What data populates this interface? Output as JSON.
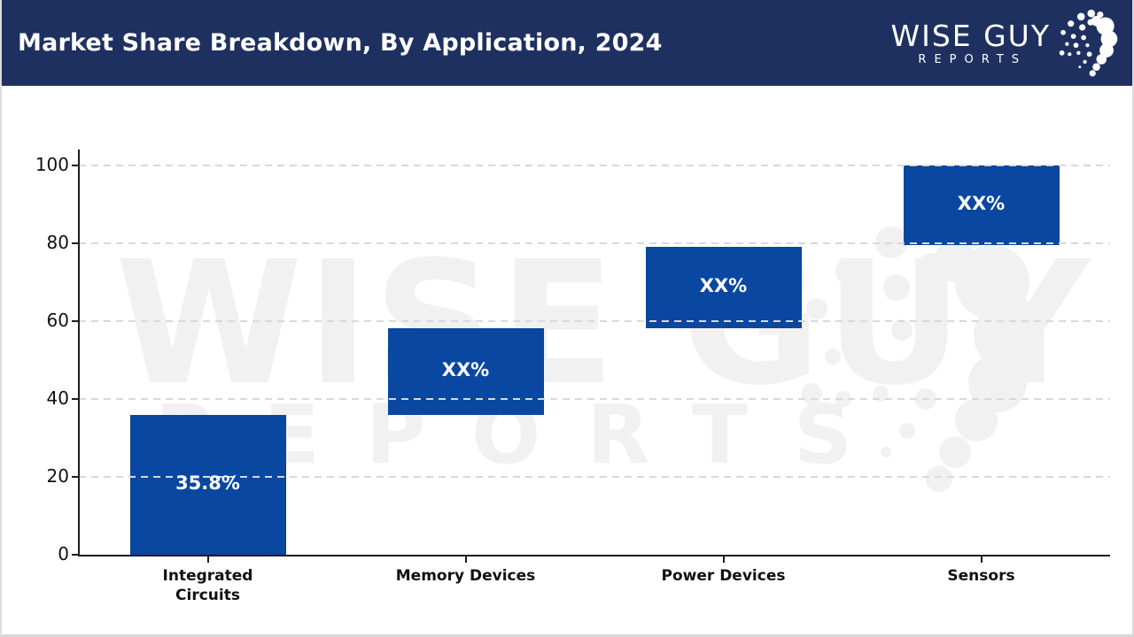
{
  "header": {
    "title": "Market Share Breakdown, By Application, 2024",
    "logo": {
      "line1": "WISE GUY",
      "line2": "REPORTS"
    }
  },
  "watermark": {
    "line1": "WISE GUY",
    "line2": "REPORTS"
  },
  "colors": {
    "header_bg": "#1e3060",
    "bar": "#0a47a0",
    "grid": "#d9d9d9",
    "bar_label": "#ffffff",
    "axis": "#1c1c1c",
    "watermark": "#f1f1f1"
  },
  "chart_data": {
    "type": "bar",
    "subtype": "waterfall",
    "title": "Market Share Breakdown, By Application, 2024",
    "categories": [
      "Integrated\nCircuits",
      "Memory Devices",
      "Power Devices",
      "Sensors"
    ],
    "segments": [
      {
        "category": "Integrated Circuits",
        "start": 0,
        "end": 35.8,
        "label": "35.8%"
      },
      {
        "category": "Memory Devices",
        "start": 35.8,
        "end": 58.2,
        "label": "XX%"
      },
      {
        "category": "Power Devices",
        "start": 58.2,
        "end": 79.2,
        "label": "XX%"
      },
      {
        "category": "Sensors",
        "start": 79.5,
        "end": 100,
        "label": "XX%"
      }
    ],
    "xlabel": "",
    "ylabel": "",
    "ylim": [
      0,
      100
    ],
    "yticks": [
      0,
      20,
      40,
      60,
      80,
      100
    ],
    "grid": "horizontal-dashed",
    "gridlines_above_bars": true,
    "legend": "none"
  }
}
